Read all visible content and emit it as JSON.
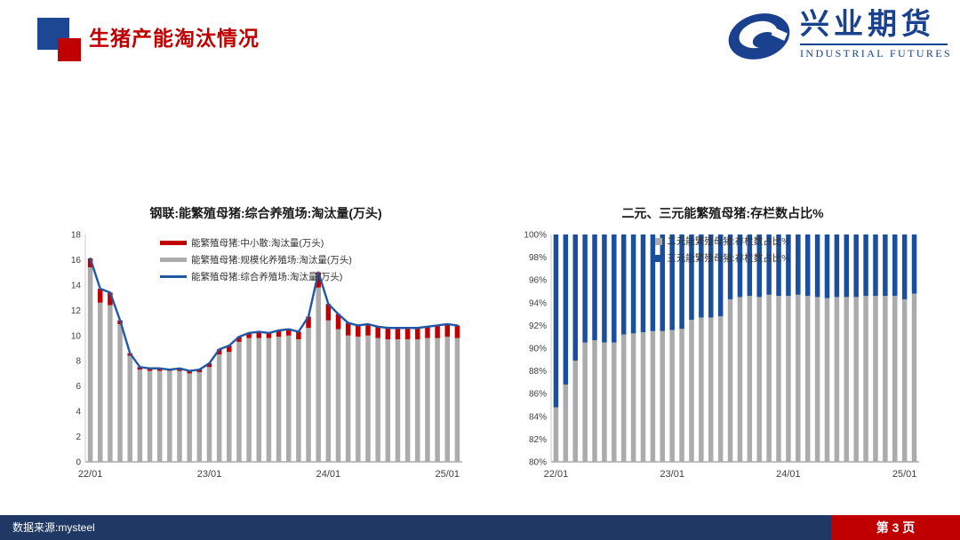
{
  "header": {
    "title": "生猪产能淘汰情况"
  },
  "logo": {
    "name_cn": "兴业期货",
    "name_en": "INDUSTRIAL FUTURES",
    "color": "#19418E",
    "icon": "swirl-globe-icon"
  },
  "footer": {
    "source": "数据来源:mysteel",
    "page": "第 3 页"
  },
  "accent_colors": {
    "red": "#C00000",
    "blue_square": "#1D4693",
    "footer_navy": "#1F3864"
  },
  "chart_data": [
    {
      "type": "bar",
      "subtype": "stacked-bars-with-line",
      "title": "钢联:能繁殖母猪:综合养殖场:淘汰量(万头)",
      "x": [
        "22/01",
        "22/02",
        "22/03",
        "22/04",
        "22/05",
        "22/06",
        "22/07",
        "22/08",
        "22/09",
        "22/10",
        "22/11",
        "22/12",
        "23/01",
        "23/02",
        "23/03",
        "23/04",
        "23/05",
        "23/06",
        "23/07",
        "23/08",
        "23/09",
        "23/10",
        "23/11",
        "23/12",
        "24/01",
        "24/02",
        "24/03",
        "24/04",
        "24/05",
        "24/06",
        "24/07",
        "24/08",
        "24/09",
        "24/10",
        "24/11",
        "24/12",
        "25/01",
        "25/02"
      ],
      "xticks": [
        "22/01",
        "23/01",
        "24/01",
        "25/01"
      ],
      "ylim": [
        0,
        18
      ],
      "ytick_step": 2,
      "percent": false,
      "legend_position": "inside-top",
      "grid": false,
      "series": [
        {
          "name": "能繁殖母猪:规模化养殖场:淘汰量(万头)",
          "type": "bar",
          "marker": "bar",
          "color": "#ABABAB",
          "legend_order": 1,
          "values": [
            15.4,
            12.6,
            12.4,
            10.9,
            8.4,
            7.3,
            7.2,
            7.2,
            7.2,
            7.2,
            7.0,
            7.1,
            7.5,
            8.5,
            8.7,
            9.5,
            9.8,
            9.8,
            9.8,
            9.9,
            10.0,
            9.7,
            10.6,
            13.8,
            11.2,
            10.5,
            10.0,
            9.9,
            10.0,
            9.8,
            9.7,
            9.7,
            9.7,
            9.7,
            9.8,
            9.8,
            9.9,
            9.8
          ]
        },
        {
          "name": "能繁殖母猪:中小散:淘汰量(万头)",
          "type": "bar",
          "marker": "bar",
          "color": "#C00000",
          "legend_order": 0,
          "values": [
            0.7,
            1.1,
            1.0,
            0.3,
            0.2,
            0.2,
            0.2,
            0.2,
            0.1,
            0.2,
            0.2,
            0.2,
            0.3,
            0.4,
            0.5,
            0.4,
            0.4,
            0.5,
            0.4,
            0.5,
            0.5,
            0.6,
            0.9,
            1.2,
            1.3,
            1.2,
            1.0,
            0.9,
            0.9,
            0.9,
            0.9,
            0.9,
            0.9,
            0.9,
            0.9,
            1.0,
            1.0,
            1.0
          ]
        },
        {
          "name": "能繁殖母猪:综合养殖场:淘汰量(万头)",
          "type": "line",
          "marker": "line",
          "color": "#2257A6",
          "legend_order": 2,
          "values": [
            16.1,
            13.7,
            13.4,
            11.2,
            8.6,
            7.5,
            7.4,
            7.4,
            7.3,
            7.4,
            7.2,
            7.3,
            7.8,
            8.9,
            9.2,
            9.9,
            10.2,
            10.3,
            10.2,
            10.4,
            10.5,
            10.3,
            11.5,
            15.0,
            12.5,
            11.7,
            11.0,
            10.8,
            10.9,
            10.7,
            10.6,
            10.6,
            10.6,
            10.6,
            10.7,
            10.8,
            10.9,
            10.8
          ]
        }
      ]
    },
    {
      "type": "bar",
      "subtype": "stacked-percent-bars",
      "title": "二元、三元能繁殖母猪:存栏数占比%",
      "x": [
        "22/01",
        "22/02",
        "22/03",
        "22/04",
        "22/05",
        "22/06",
        "22/07",
        "22/08",
        "22/09",
        "22/10",
        "22/11",
        "22/12",
        "23/01",
        "23/02",
        "23/03",
        "23/04",
        "23/05",
        "23/06",
        "23/07",
        "23/08",
        "23/09",
        "23/10",
        "23/11",
        "23/12",
        "24/01",
        "24/02",
        "24/03",
        "24/04",
        "24/05",
        "24/06",
        "24/07",
        "24/08",
        "24/09",
        "24/10",
        "24/11",
        "24/12",
        "25/01",
        "25/02"
      ],
      "xticks": [
        "22/01",
        "23/01",
        "24/01",
        "25/01"
      ],
      "ylim": [
        80,
        100
      ],
      "ytick_step": 2,
      "percent": true,
      "legend_position": "inside-top-center",
      "grid": false,
      "series": [
        {
          "name": "二元能繁殖母猪:存栏数占比%",
          "type": "bar",
          "marker": "square",
          "color": "#ABABAB",
          "legend_order": 0,
          "values": [
            84.8,
            86.8,
            88.9,
            90.5,
            90.7,
            90.5,
            90.5,
            91.2,
            91.3,
            91.4,
            91.5,
            91.5,
            91.6,
            91.7,
            92.5,
            92.7,
            92.7,
            92.8,
            94.3,
            94.5,
            94.6,
            94.5,
            94.7,
            94.6,
            94.6,
            94.7,
            94.6,
            94.5,
            94.4,
            94.5,
            94.5,
            94.5,
            94.6,
            94.6,
            94.6,
            94.6,
            94.3,
            94.8
          ]
        },
        {
          "name": "三元能繁殖母猪:存栏数占比%",
          "type": "bar",
          "marker": "square",
          "color": "#1A4FA0",
          "legend_order": 1,
          "values": [
            15.2,
            13.2,
            11.1,
            9.5,
            9.3,
            9.5,
            9.5,
            8.8,
            8.7,
            8.6,
            8.5,
            8.5,
            8.4,
            8.3,
            7.5,
            7.3,
            7.3,
            7.2,
            5.7,
            5.5,
            5.4,
            5.5,
            5.3,
            5.4,
            5.4,
            5.3,
            5.4,
            5.5,
            5.6,
            5.5,
            5.5,
            5.5,
            5.4,
            5.4,
            5.4,
            5.4,
            5.7,
            5.2
          ]
        }
      ]
    }
  ]
}
